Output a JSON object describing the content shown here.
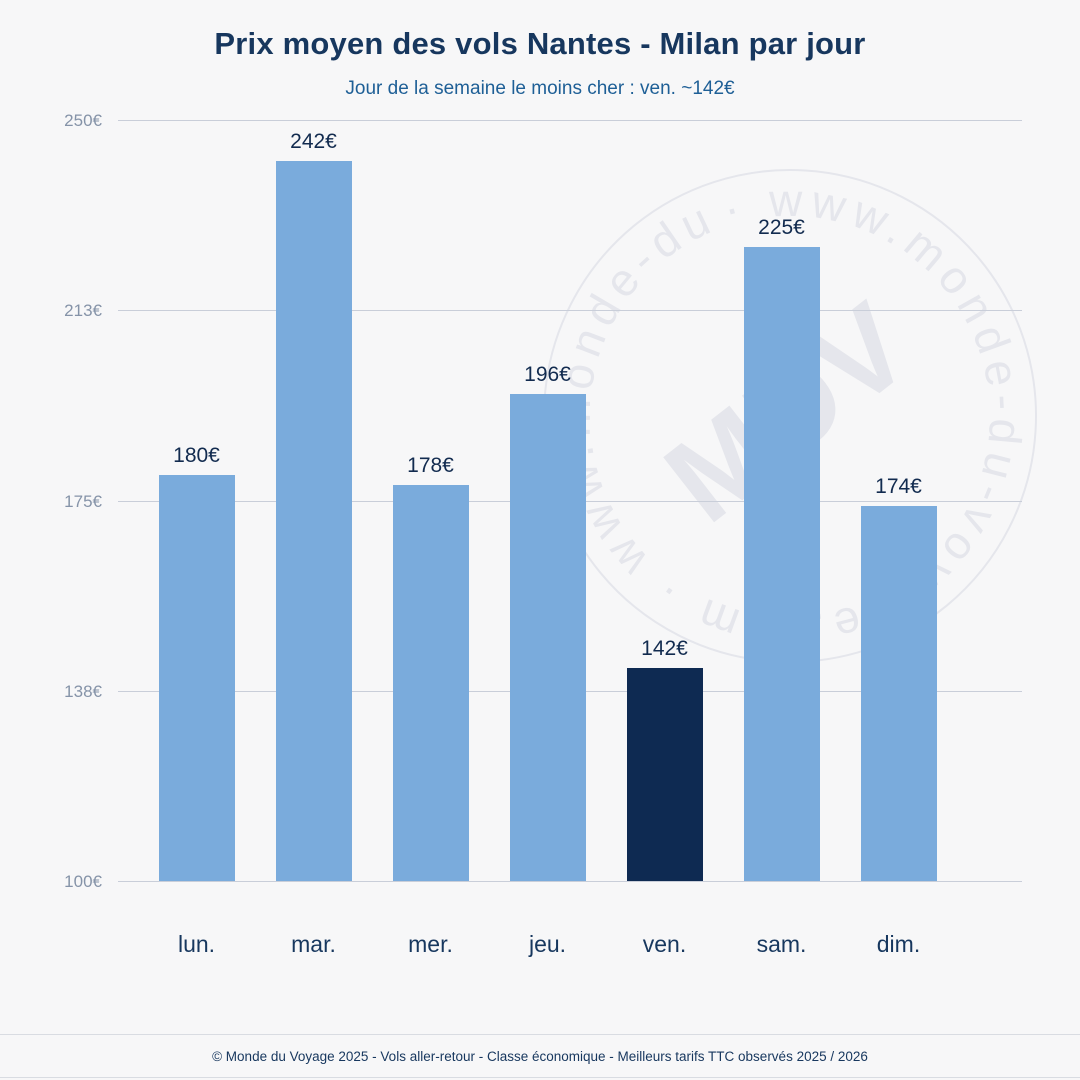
{
  "title": "Prix moyen des vols Nantes - Milan par jour",
  "subtitle": "Jour de la semaine le moins cher : ven. ~142€",
  "footer": "© Monde du Voyage 2025 - Vols aller-retour - Classe économique - Meilleurs tarifs TTC observés 2025 / 2026",
  "watermark": {
    "ring_text": "· www.monde-du-voyage.com · www.monde-du-voyage.com",
    "center_text": "MDV"
  },
  "chart_data": {
    "type": "bar",
    "title": "Prix moyen des vols Nantes - Milan par jour",
    "subtitle": "Jour de la semaine le moins cher : ven. ~142€",
    "categories": [
      "lun.",
      "mar.",
      "mer.",
      "jeu.",
      "ven.",
      "sam.",
      "dim."
    ],
    "values": [
      180,
      242,
      178,
      196,
      142,
      225,
      174
    ],
    "value_labels": [
      "180€",
      "242€",
      "178€",
      "196€",
      "142€",
      "225€",
      "174€"
    ],
    "highlight_index": 4,
    "y_ticks": [
      "250€",
      "213€",
      "175€",
      "138€",
      "100€"
    ],
    "ylim": [
      100,
      250
    ],
    "xlabel": "",
    "ylabel": "",
    "grid": true,
    "legend_position": "none",
    "bar_color": "#7aabdc",
    "highlight_color": "#0e2a52",
    "grid_color": "#c9ced9"
  }
}
